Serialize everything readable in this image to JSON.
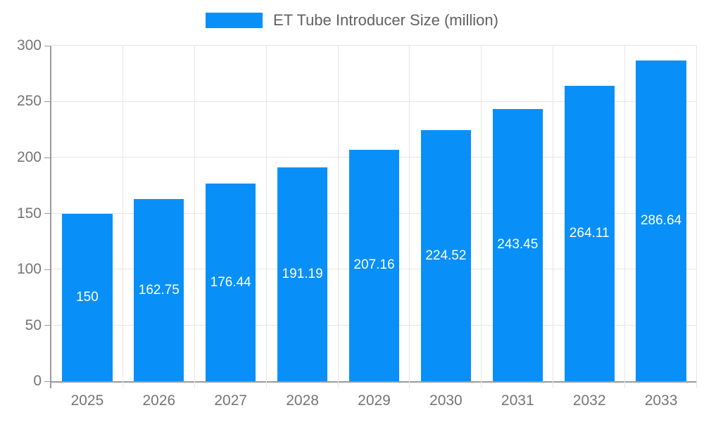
{
  "chart_data": {
    "type": "bar",
    "title": "ET Tube Introducer Size (million)",
    "categories": [
      "2025",
      "2026",
      "2027",
      "2028",
      "2029",
      "2030",
      "2031",
      "2032",
      "2033"
    ],
    "values": [
      150,
      162.75,
      176.44,
      191.19,
      207.16,
      224.52,
      243.45,
      264.11,
      286.64
    ],
    "value_labels": [
      "150",
      "162.75",
      "176.44",
      "191.19",
      "207.16",
      "224.52",
      "243.45",
      "264.11",
      "286.64"
    ],
    "xlabel": "",
    "ylabel": "",
    "ylim": [
      0,
      300
    ],
    "yticks": [
      0,
      50,
      100,
      150,
      200,
      250,
      300
    ],
    "grid": true,
    "legend_position": "top",
    "colors": {
      "bar": "#0890f8",
      "grid_line": "#e6e6e6",
      "axis_line": "#9a9a9a",
      "axis_text": "#757575",
      "value_text": "#ffffff",
      "legend_text": "#616161"
    }
  }
}
